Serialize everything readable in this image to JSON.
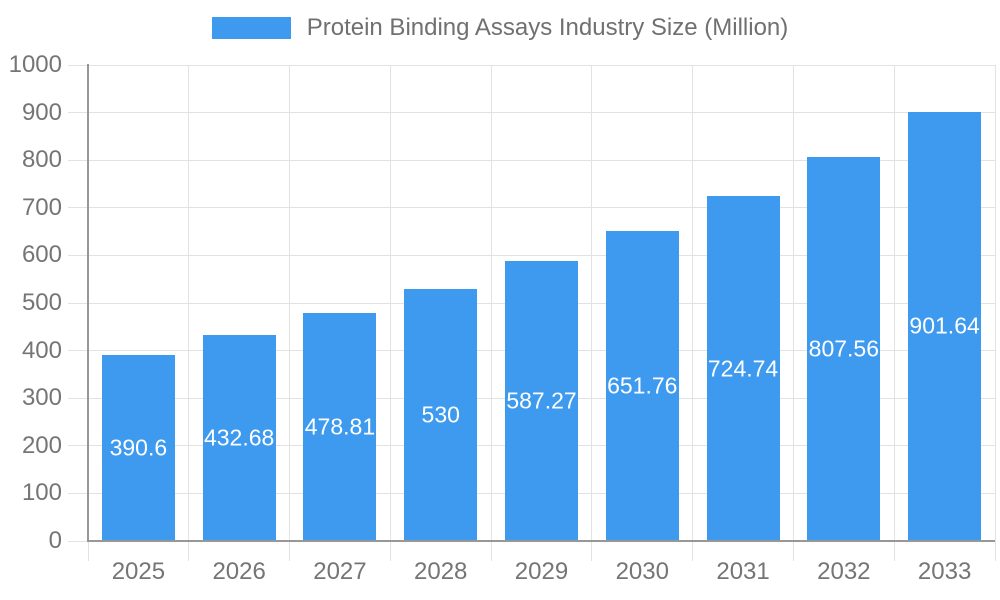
{
  "legend": {
    "label": "Protein Binding Assays Industry Size (Million)",
    "swatch_color": "#3D9AEF"
  },
  "chart_data": {
    "type": "bar",
    "title": "Protein Binding Assays Industry Size (Million)",
    "categories": [
      "2025",
      "2026",
      "2027",
      "2028",
      "2029",
      "2030",
      "2031",
      "2032",
      "2033"
    ],
    "values": [
      390.6,
      432.68,
      478.81,
      530,
      587.27,
      651.76,
      724.74,
      807.56,
      901.64
    ],
    "value_labels": [
      "390.6",
      "432.68",
      "478.81",
      "530",
      "587.27",
      "651.76",
      "724.74",
      "807.56",
      "901.64"
    ],
    "xlabel": "",
    "ylabel": "",
    "ylim": [
      0,
      1000
    ],
    "y_ticks": [
      0,
      100,
      200,
      300,
      400,
      500,
      600,
      700,
      800,
      900,
      1000
    ],
    "y_tick_labels": [
      "0",
      "100",
      "200",
      "300",
      "400",
      "500",
      "600",
      "700",
      "800",
      "900",
      "1000"
    ],
    "grid": true,
    "legend_position": "top",
    "value_label_position": "middle"
  },
  "colors": {
    "bar": "#3D9AEF",
    "grid": "#E2E2E2",
    "axis": "#979797",
    "axis_text": "#757575",
    "legend_text": "#707070",
    "value_text": "#FFFFFF",
    "background": "#FFFFFF"
  }
}
